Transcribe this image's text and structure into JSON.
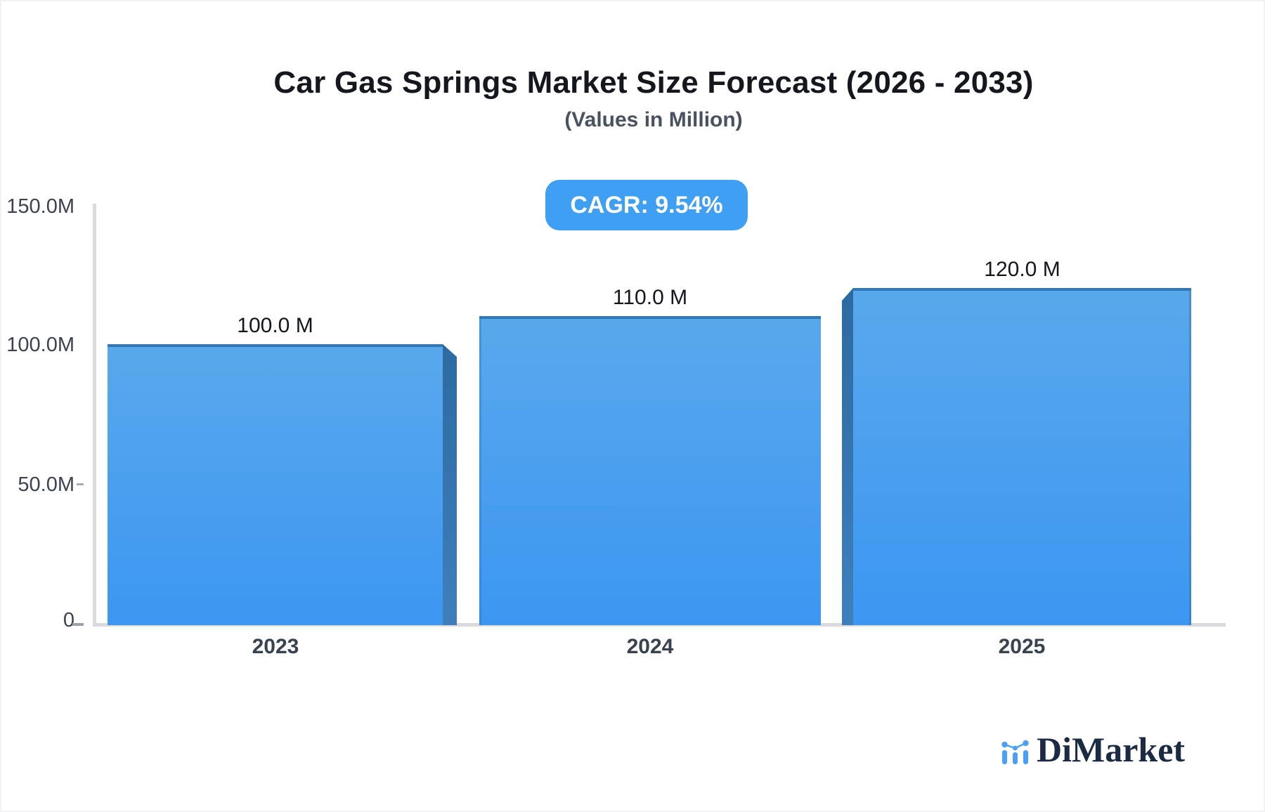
{
  "header": {
    "title": "Car Gas Springs Market Size Forecast (2026 - 2033)",
    "subtitle": "(Values in Million)",
    "cagr_label": "CAGR: 9.54%"
  },
  "chart_data": {
    "type": "bar",
    "title": "Car Gas Springs Market Size Forecast (2026 - 2033)",
    "subtitle": "(Values in Million)",
    "unit": "Million",
    "cagr_percent": "9.54%",
    "categories": [
      "2023",
      "2024",
      "2025"
    ],
    "values": [
      100.0,
      110.0,
      120.0
    ],
    "value_labels": [
      "100.0 M",
      "110.0 M",
      "120.0 M"
    ],
    "ylim": [
      0,
      150
    ],
    "yticks": [
      {
        "label": "150.0M",
        "value": 150
      },
      {
        "label": "100.0M",
        "value": 100
      },
      {
        "label": "50.0M",
        "value": 50
      },
      {
        "label": "0",
        "value": 0
      }
    ],
    "grid": false,
    "legend": "none",
    "bar_style": "3d-perspective"
  },
  "logo": {
    "text": "DiMarket",
    "icon": "bar-chart-trend-icon"
  },
  "colors": {
    "badge_bg": "#3f9ff3",
    "badge_text": "#ffffff",
    "bar_top": "#58a8ec",
    "bar_bottom": "#3c97f1",
    "bar_side": "#2d6aa2",
    "axis_line": "#d9dade",
    "logo_blue": "#4aa0f4",
    "logo_navy": "#1b2b44"
  }
}
